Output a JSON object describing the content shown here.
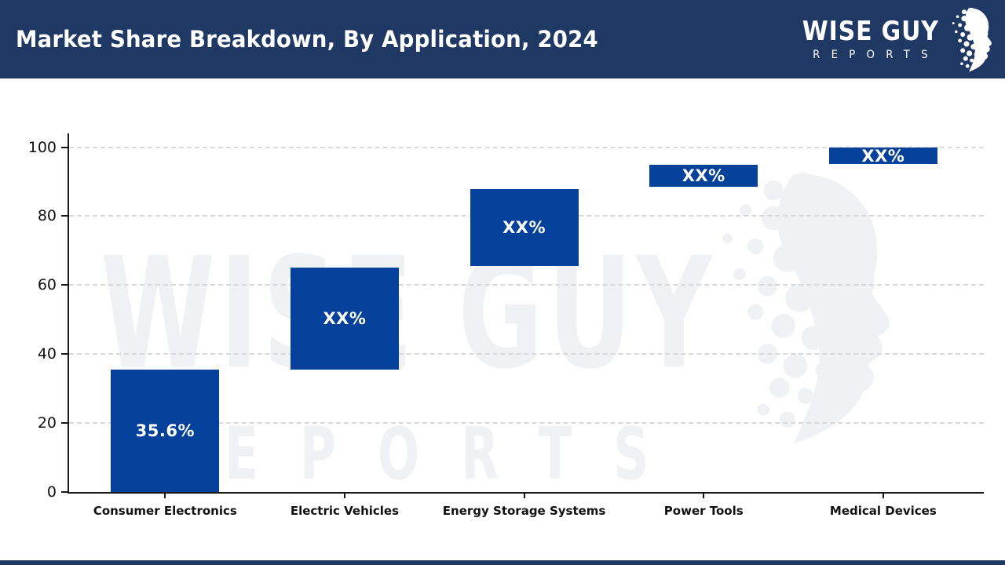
{
  "header": {
    "title": "Market Share Breakdown, By Application, 2024",
    "logo": {
      "wordmark": "WISE GUY",
      "subtext": "REPORTS"
    }
  },
  "watermark": {
    "wordmark": "WISE GUY",
    "subtext": "REPORTS"
  },
  "colors": {
    "header_navy": "#1F3864",
    "bar_blue": "#04419A",
    "grid_gray": "#D9D9D9",
    "axis_black": "#1A1A1A",
    "watermark_gray": "#F0F1F4",
    "bar_label_white": "#FFFFFF"
  },
  "chart_data": {
    "type": "bar",
    "subtype": "waterfall",
    "title": "Market Share Breakdown, By Application, 2024",
    "xlabel": "",
    "ylabel": "",
    "ylim": [
      0,
      104
    ],
    "yticks": [
      0,
      20,
      40,
      60,
      80,
      100
    ],
    "grid": "horizontal-dashed",
    "legend": "none",
    "categories": [
      "Consumer Electronics",
      "Electric Vehicles",
      "Energy Storage Systems",
      "Power Tools",
      "Medical Devices"
    ],
    "bars": [
      {
        "category": "Consumer Electronics",
        "start": 0,
        "end": 35.6,
        "label": "35.6%"
      },
      {
        "category": "Electric Vehicles",
        "start": 35.6,
        "end": 65.1,
        "label": "XX%"
      },
      {
        "category": "Energy Storage Systems",
        "start": 65.5,
        "end": 87.8,
        "label": "XX%"
      },
      {
        "category": "Power Tools",
        "start": 88.5,
        "end": 94.9,
        "label": "XX%"
      },
      {
        "category": "Medical Devices",
        "start": 95.1,
        "end": 99.9,
        "label": "XX%"
      }
    ]
  }
}
